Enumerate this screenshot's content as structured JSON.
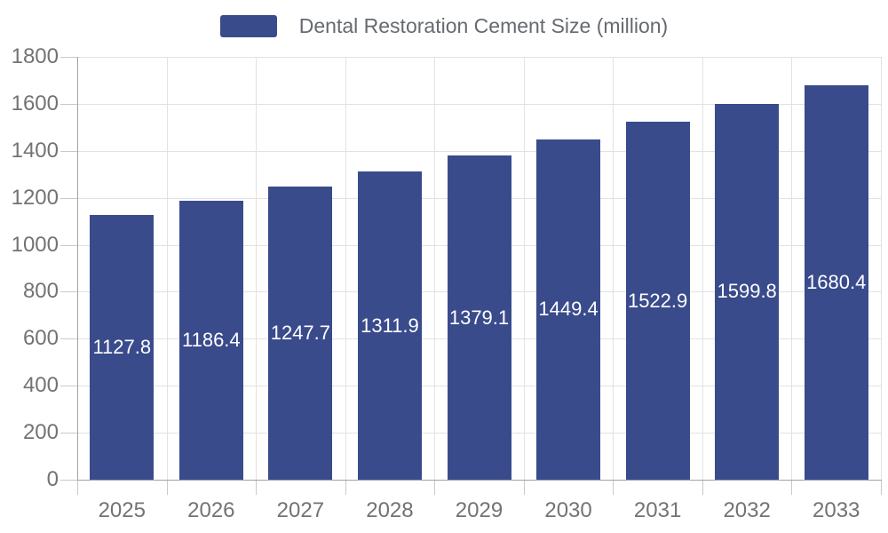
{
  "chart_data": {
    "type": "bar",
    "title": "Dental Restoration Cement Size (million)",
    "series_name": "Dental Restoration Cement Size (million)",
    "categories": [
      "2025",
      "2026",
      "2027",
      "2028",
      "2029",
      "2030",
      "2031",
      "2032",
      "2033"
    ],
    "values": [
      1127.8,
      1186.4,
      1247.7,
      1311.9,
      1379.1,
      1449.4,
      1522.9,
      1599.8,
      1680.4
    ],
    "xlabel": "",
    "ylabel": "",
    "ylim": [
      0,
      1800
    ],
    "yticks": [
      0,
      200,
      400,
      600,
      800,
      1000,
      1200,
      1400,
      1600,
      1800
    ],
    "grid": true,
    "legend_position": "top",
    "value_labels": "inside-center",
    "colors": {
      "bar": "#3A4B8C",
      "bar_label": "#FFFFFF",
      "axis_label": "#737373",
      "legend_text": "#666A70",
      "grid_line": "#E2E2E2",
      "axis_line": "#A3A3A3",
      "tick": "#C9C9C9",
      "background": "#FFFFFF"
    }
  }
}
